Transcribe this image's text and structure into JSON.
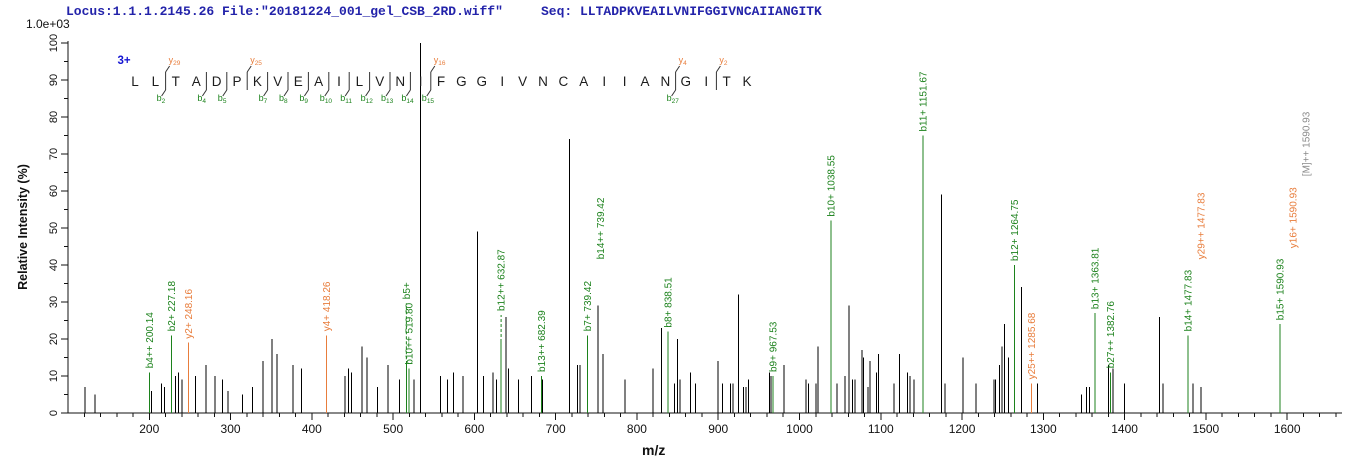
{
  "header": {
    "locus_file": "Locus:1.1.1.2145.26 File:\"20181224_001_gel_CSB_2RD.wiff\"",
    "seq": "Seq: LLTADPKVEAILVNIFGGIVNCAIIANGITK",
    "intensity_scale": "1.0e+03"
  },
  "axes": {
    "x_title": "m/z",
    "y_title": "Relative  Intensity (%)",
    "x_ticks": [
      200,
      300,
      400,
      500,
      600,
      700,
      800,
      900,
      1000,
      1100,
      1200,
      1300,
      1400,
      1500,
      1600
    ],
    "y_ticks": [
      0,
      10,
      20,
      30,
      40,
      50,
      60,
      70,
      80,
      90,
      100
    ]
  },
  "annotation": {
    "precursor_charge": "3+",
    "sequence": "LLTADPKVEAILVNIFGGIVNCAIIANGITK",
    "cuts": [
      {
        "after": 2,
        "b": "2",
        "y": "29"
      },
      {
        "after": 4,
        "b": "4"
      },
      {
        "after": 5,
        "b": "5"
      },
      {
        "after": 6,
        "y": "25"
      },
      {
        "after": 7,
        "b": "7"
      },
      {
        "after": 8,
        "b": "8"
      },
      {
        "after": 9,
        "b": "9"
      },
      {
        "after": 10,
        "b": "10"
      },
      {
        "after": 11,
        "b": "11"
      },
      {
        "after": 12,
        "b": "12"
      },
      {
        "after": 13,
        "b": "13"
      },
      {
        "after": 14,
        "b": "14"
      },
      {
        "after": 15,
        "b": "15",
        "y": "16"
      },
      {
        "after": 27,
        "b": "27",
        "y": "4"
      },
      {
        "after": 29,
        "y": "2"
      }
    ]
  },
  "colors": {
    "b_ion": "#1c821c",
    "y_ion": "#e87d3c",
    "precursor_label": "#8a8a8a",
    "peak": "#000000",
    "header_text": "#2323aa",
    "charge_text": "#1414d2",
    "axis": "#111111"
  },
  "chart_data": {
    "type": "bar",
    "title": "MS/MS fragmentation spectrum",
    "xlabel": "m/z",
    "ylabel": "Relative  Intensity (%)",
    "xlim": [
      100,
      1665
    ],
    "ylim": [
      0,
      100
    ],
    "x_minor_tick_step": 20,
    "x_major_tick_step": 100,
    "y_minor_tick_step": 5,
    "y_major_tick_step": 10,
    "intensity_scale_factor": "1.0e+03",
    "peaks_unlabeled": [
      [
        121,
        7
      ],
      [
        133,
        5
      ],
      [
        203,
        6
      ],
      [
        215,
        8
      ],
      [
        219,
        7
      ],
      [
        232,
        10
      ],
      [
        236,
        11
      ],
      [
        240,
        9
      ],
      [
        257,
        10
      ],
      [
        270,
        13
      ],
      [
        281,
        10
      ],
      [
        290,
        9
      ],
      [
        297,
        6
      ],
      [
        315,
        5
      ],
      [
        327,
        7
      ],
      [
        340,
        14
      ],
      [
        351,
        20
      ],
      [
        357,
        16
      ],
      [
        377,
        13
      ],
      [
        387,
        12
      ],
      [
        441,
        10
      ],
      [
        445,
        12
      ],
      [
        449,
        11
      ],
      [
        462,
        18
      ],
      [
        468,
        15
      ],
      [
        481,
        7
      ],
      [
        494,
        13
      ],
      [
        508,
        9
      ],
      [
        526,
        9
      ],
      [
        533.7,
        100
      ],
      [
        558,
        10
      ],
      [
        567,
        9
      ],
      [
        574,
        11
      ],
      [
        586,
        10
      ],
      [
        604,
        49
      ],
      [
        611,
        10
      ],
      [
        623,
        11
      ],
      [
        627,
        9
      ],
      [
        639,
        26
      ],
      [
        642,
        12
      ],
      [
        654,
        9
      ],
      [
        670,
        10
      ],
      [
        684,
        9
      ],
      [
        717,
        74
      ],
      [
        727,
        13
      ],
      [
        730,
        13
      ],
      [
        752,
        29
      ],
      [
        758,
        16
      ],
      [
        785,
        9
      ],
      [
        820,
        12
      ],
      [
        830,
        23
      ],
      [
        846,
        8
      ],
      [
        850,
        20
      ],
      [
        853,
        9
      ],
      [
        866,
        11
      ],
      [
        872,
        8
      ],
      [
        900,
        14
      ],
      [
        905,
        8
      ],
      [
        915,
        8
      ],
      [
        918,
        8
      ],
      [
        925,
        32
      ],
      [
        931,
        7
      ],
      [
        934,
        7
      ],
      [
        937,
        9
      ],
      [
        963,
        11
      ],
      [
        965,
        10
      ],
      [
        981,
        13
      ],
      [
        1008,
        9
      ],
      [
        1011,
        8
      ],
      [
        1020,
        8
      ],
      [
        1023,
        18
      ],
      [
        1046,
        8
      ],
      [
        1056,
        10
      ],
      [
        1061,
        29
      ],
      [
        1065,
        9
      ],
      [
        1068,
        9
      ],
      [
        1077,
        17
      ],
      [
        1079,
        15
      ],
      [
        1084,
        7
      ],
      [
        1087,
        14
      ],
      [
        1095,
        11
      ],
      [
        1097,
        16
      ],
      [
        1116,
        8
      ],
      [
        1123,
        16
      ],
      [
        1133,
        11
      ],
      [
        1136,
        10
      ],
      [
        1141,
        9
      ],
      [
        1175,
        59
      ],
      [
        1179,
        8
      ],
      [
        1201,
        15
      ],
      [
        1217,
        8
      ],
      [
        1239,
        9
      ],
      [
        1241,
        9
      ],
      [
        1246,
        13
      ],
      [
        1249,
        18
      ],
      [
        1252,
        24
      ],
      [
        1257,
        15
      ],
      [
        1273,
        34
      ],
      [
        1293,
        8
      ],
      [
        1347,
        5
      ],
      [
        1353,
        7
      ],
      [
        1357,
        7
      ],
      [
        1380,
        13
      ],
      [
        1386,
        12
      ],
      [
        1400,
        8
      ],
      [
        1443,
        26
      ],
      [
        1447,
        8
      ],
      [
        1484,
        8
      ],
      [
        1494,
        7
      ]
    ],
    "peaks_annotated": [
      {
        "mz": 200.14,
        "intensity": 11,
        "labels": [
          {
            "text": "b4++ 200.14",
            "ion": "b"
          }
        ]
      },
      {
        "mz": 227.18,
        "intensity": 21,
        "labels": [
          {
            "text": "b2+ 227.18",
            "ion": "b"
          }
        ]
      },
      {
        "mz": 248.16,
        "intensity": 19,
        "labels": [
          {
            "text": "y2+ 248.16",
            "ion": "y"
          }
        ]
      },
      {
        "mz": 418.26,
        "intensity": 21,
        "labels": [
          {
            "text": "y4+ 418.26",
            "ion": "y"
          }
        ]
      },
      {
        "mz": 516.3,
        "intensity": 14,
        "labels": [
          {
            "text": "b5+",
            "ion": "b"
          }
        ],
        "leader_gap": 58
      },
      {
        "mz": 519.8,
        "intensity": 12,
        "labels": [
          {
            "text": "b10++ 519.80",
            "ion": "b"
          }
        ]
      },
      {
        "mz": 632.87,
        "intensity": 20,
        "labels": [
          {
            "text": "b12++ 632.87",
            "ion": "b"
          }
        ],
        "leader_gap": 24
      },
      {
        "mz": 682.39,
        "intensity": 10,
        "labels": [
          {
            "text": "b13++ 682.39",
            "ion": "b"
          }
        ]
      },
      {
        "mz": 739.42,
        "intensity": 21,
        "labels": [
          {
            "text": "b7+ 739.42",
            "ion": "b"
          },
          {
            "text": "b14++ 739.42",
            "ion": "b"
          }
        ]
      },
      {
        "mz": 838.51,
        "intensity": 22,
        "labels": [
          {
            "text": "b8+ 838.51",
            "ion": "b"
          }
        ]
      },
      {
        "mz": 967.53,
        "intensity": 10,
        "labels": [
          {
            "text": "b9+ 967.53",
            "ion": "b"
          }
        ]
      },
      {
        "mz": 1038.55,
        "intensity": 52,
        "labels": [
          {
            "text": "b10+ 1038.55",
            "ion": "b"
          }
        ]
      },
      {
        "mz": 1151.67,
        "intensity": 75,
        "labels": [
          {
            "text": "b11+ 1151.67",
            "ion": "b"
          }
        ]
      },
      {
        "mz": 1264.75,
        "intensity": 40,
        "labels": [
          {
            "text": "b12+ 1264.75",
            "ion": "b"
          }
        ]
      },
      {
        "mz": 1285.68,
        "intensity": 8,
        "labels": [
          {
            "text": "y25++ 1285.68",
            "ion": "y"
          }
        ]
      },
      {
        "mz": 1363.81,
        "intensity": 27,
        "labels": [
          {
            "text": "b13+ 1363.81",
            "ion": "b"
          }
        ]
      },
      {
        "mz": 1382.76,
        "intensity": 11,
        "labels": [
          {
            "text": "b27++ 1382.76",
            "ion": "b"
          }
        ]
      },
      {
        "mz": 1477.83,
        "intensity": 21,
        "labels": [
          {
            "text": "b14+ 1477.83",
            "ion": "b"
          },
          {
            "text": "y29++ 1477.83",
            "ion": "y"
          }
        ]
      },
      {
        "mz": 1590.93,
        "intensity": 24,
        "labels": [
          {
            "text": "b15+ 1590.93",
            "ion": "b"
          },
          {
            "text": "y16+ 1590.93",
            "ion": "y"
          },
          {
            "text": "[M]++ 1590.93",
            "ion": "M"
          }
        ]
      }
    ]
  }
}
